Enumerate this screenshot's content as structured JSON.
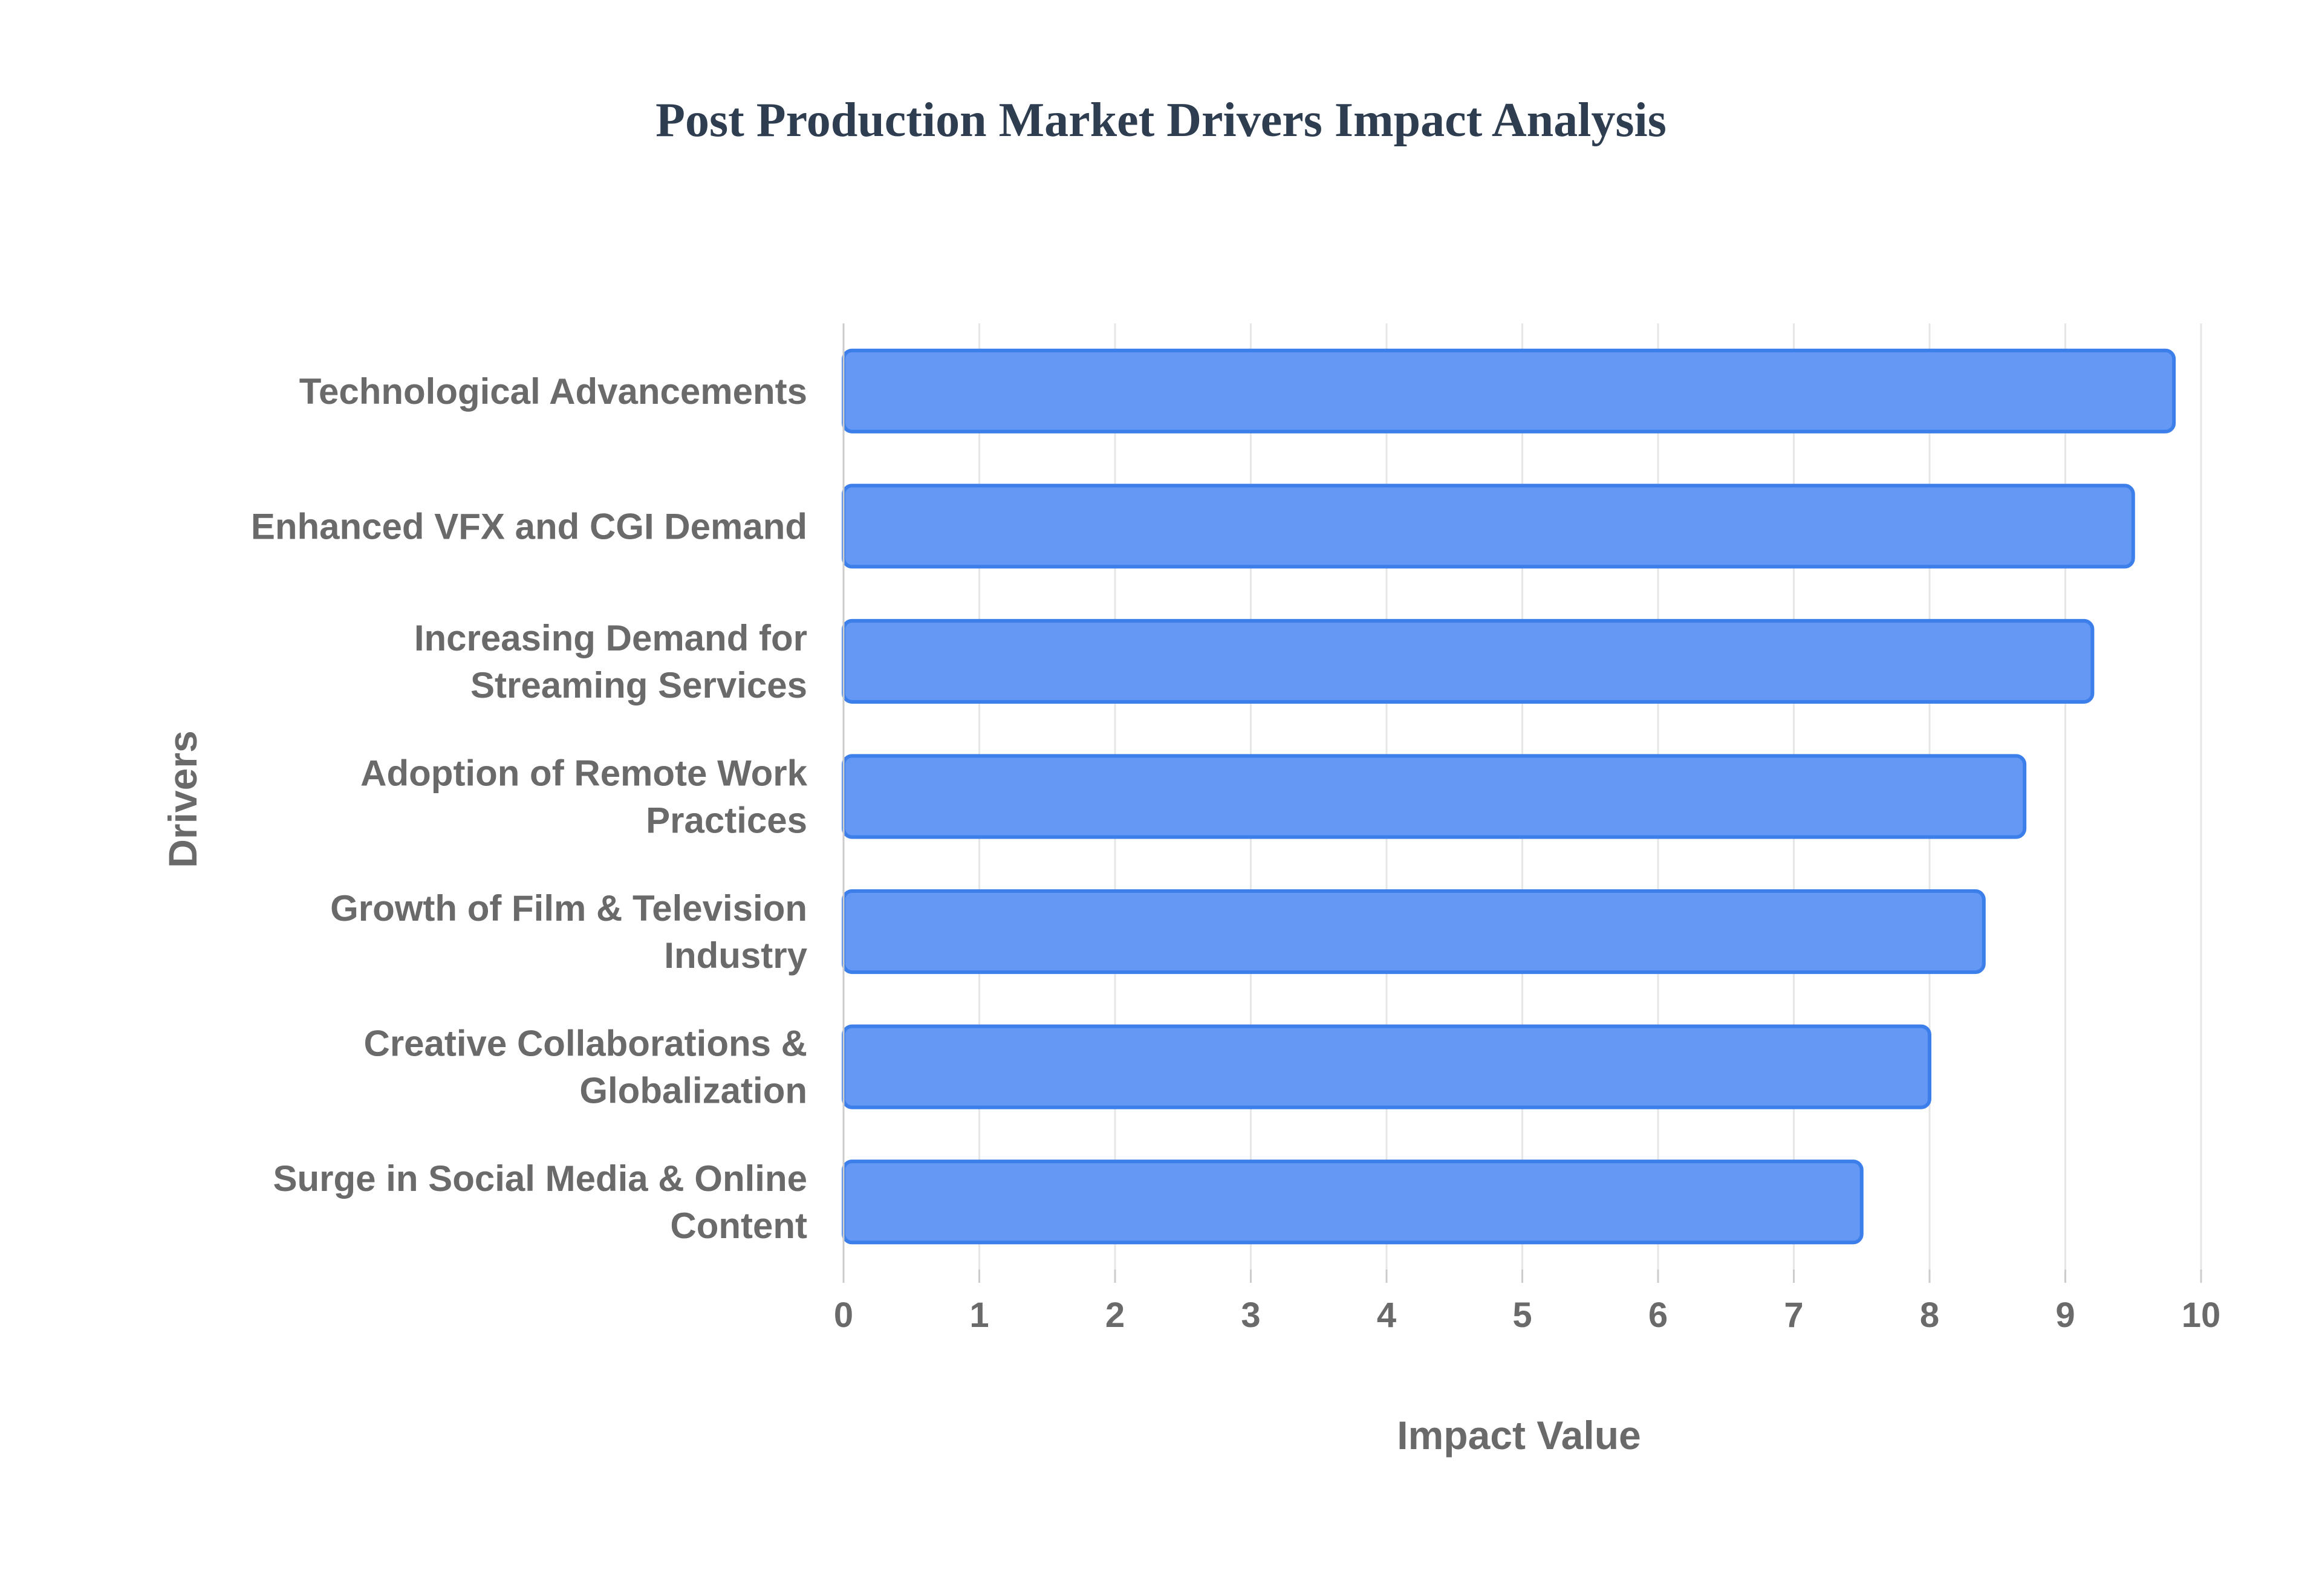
{
  "chart_data": {
    "type": "bar",
    "orientation": "horizontal",
    "title": "Post Production Market Drivers Impact Analysis",
    "xlabel": "Impact Value",
    "ylabel": "Drivers",
    "categories": [
      [
        "Technological Advancements"
      ],
      [
        "Enhanced VFX and CGI Demand"
      ],
      [
        "Increasing Demand for",
        "Streaming Services"
      ],
      [
        "Adoption of Remote Work",
        "Practices"
      ],
      [
        "Growth of Film & Television",
        "Industry"
      ],
      [
        "Creative Collaborations &",
        "Globalization"
      ],
      [
        "Surge in Social Media & Online",
        "Content"
      ]
    ],
    "values": [
      9.8,
      9.5,
      9.2,
      8.7,
      8.4,
      8.0,
      7.5
    ],
    "xlim": [
      0,
      10
    ],
    "xticks": [
      "0",
      "1",
      "2",
      "3",
      "4",
      "5",
      "6",
      "7",
      "8",
      "9",
      "10"
    ],
    "grid": true,
    "colors": {
      "bar_fill": "#6498F4",
      "bar_stroke": "#3D7FEA",
      "grid": "#E6E6E6",
      "axis_line": "#CCCCCC",
      "title": "#2E3E50",
      "label": "#6A6A6A"
    }
  }
}
